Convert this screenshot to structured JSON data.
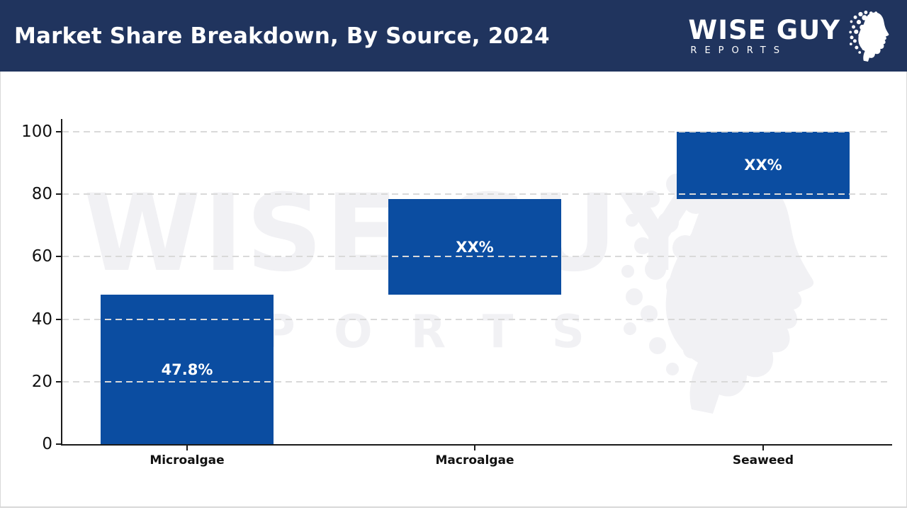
{
  "header": {
    "title": "Market Share Breakdown, By Source, 2024",
    "logo": {
      "primary": "WISE GUY",
      "secondary": "REPORTS"
    }
  },
  "watermark": {
    "primary": "WISE GUY",
    "secondary": "REPORTS"
  },
  "chart_data": {
    "type": "bar",
    "subtype": "waterfall-floating-segments",
    "title": "Market Share Breakdown, By Source, 2024",
    "categories": [
      "Microalgae",
      "Macroalgae",
      "Seaweed"
    ],
    "segments": [
      {
        "category": "Microalgae",
        "start": 0,
        "end": 47.8,
        "value": 47.8,
        "label": "47.8%"
      },
      {
        "category": "Macroalgae",
        "start": 47.8,
        "end": 78.5,
        "value": 30.7,
        "label": "XX%"
      },
      {
        "category": "Seaweed",
        "start": 78.5,
        "end": 100,
        "value": 21.5,
        "label": "XX%"
      }
    ],
    "yticks": [
      0,
      20,
      40,
      60,
      80,
      100
    ],
    "ylim": [
      0,
      100
    ],
    "xlabel": "",
    "ylabel": "",
    "legend": "none",
    "grid": "horizontal-dashed",
    "bar_color": "#0b4da1",
    "bar_label_color": "#ffffff"
  },
  "colors": {
    "header_bg": "#20345e",
    "header_text": "#ffffff",
    "bar": "#0b4da1",
    "grid": "#d9d9d9",
    "axis": "#1a1a1a",
    "watermark": "#f1f1f4"
  }
}
